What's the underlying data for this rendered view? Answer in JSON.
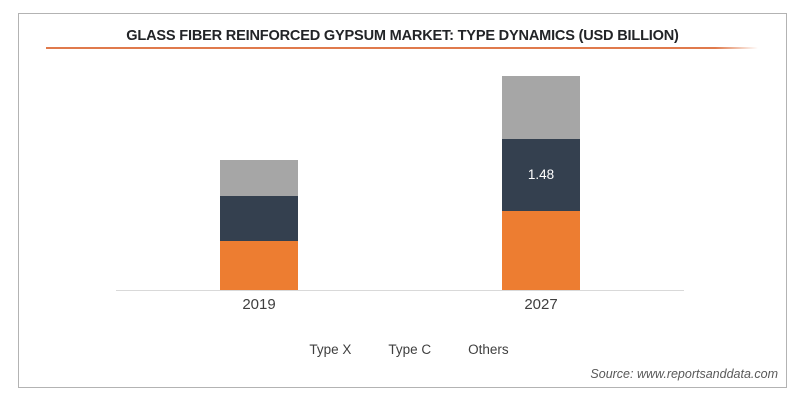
{
  "chart_data": {
    "type": "bar",
    "stacked": true,
    "title": "GLASS FIBER REINFORCED GYPSUM MARKET: TYPE DYNAMICS (USD BILLION)",
    "value_unit": "USD Billion",
    "categories": [
      "2019",
      "2027"
    ],
    "series": [
      {
        "name": "Type X",
        "color": "#ED7D31",
        "values": [
          1.0,
          1.61
        ]
      },
      {
        "name": "Type C",
        "color": "#34404F",
        "values": [
          0.91,
          1.48
        ]
      },
      {
        "name": "Others",
        "color": "#A6A6A6",
        "values": [
          0.74,
          1.28
        ]
      }
    ],
    "data_labels": [
      {
        "category_index": 1,
        "series_index": 1,
        "text": "1.48"
      }
    ],
    "xlabel": "",
    "ylabel": "",
    "ylim": [
      0,
      5.6
    ],
    "grid": false,
    "legend_position": "bottom"
  },
  "colors": {
    "accent_orange": "#ED7D31",
    "dark_navy": "#34404F",
    "neutral_gray": "#A6A6A6",
    "divider_orange": "#E07A4C",
    "frame_border": "#B3B3B3",
    "axis_line": "#D9D9D9"
  },
  "source": {
    "text": "Source: www.reportsanddata.com"
  }
}
